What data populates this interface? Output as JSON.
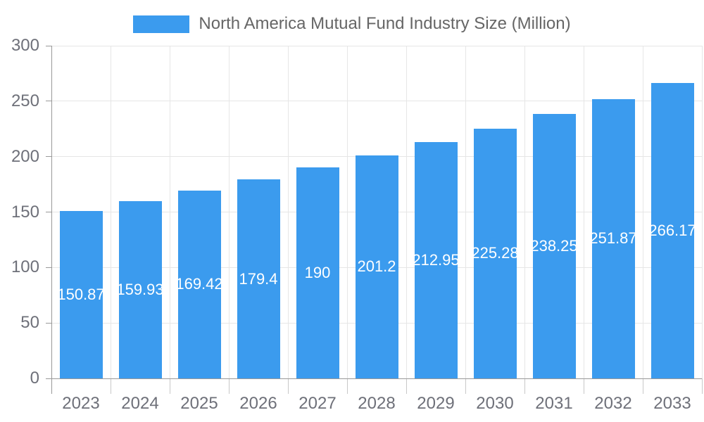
{
  "colors": {
    "bar": "#3B9BEE",
    "bar_label": "#FFFFFF",
    "axis_line": "#999999",
    "grid_line": "#E6E6E6",
    "tick_below_axis": "#C8C8C8",
    "axis_text": "#6E7079",
    "legend_text": "#666666",
    "background": "#FFFFFF"
  },
  "legend": {
    "label": "North America Mutual Fund Industry Size (Million)"
  },
  "chart_data": {
    "type": "bar",
    "title": "North America Mutual Fund Industry Size (Million)",
    "categories": [
      "2023",
      "2024",
      "2025",
      "2026",
      "2027",
      "2028",
      "2029",
      "2030",
      "2031",
      "2032",
      "2033"
    ],
    "values": [
      150.87,
      159.93,
      169.42,
      179.4,
      190,
      201.2,
      212.95,
      225.28,
      238.25,
      251.87,
      266.17
    ],
    "value_labels": [
      "150.87",
      "159.93",
      "169.42",
      "179.4",
      "190",
      "201.2",
      "212.95",
      "225.28",
      "238.25",
      "251.87",
      "266.17"
    ],
    "xlabel": "",
    "ylabel": "",
    "ylim": [
      0,
      300
    ],
    "y_ticks": [
      0,
      50,
      100,
      150,
      200,
      250,
      300
    ],
    "grid": true,
    "legend_position": "top-center",
    "bar_label_position": "inside-center"
  }
}
